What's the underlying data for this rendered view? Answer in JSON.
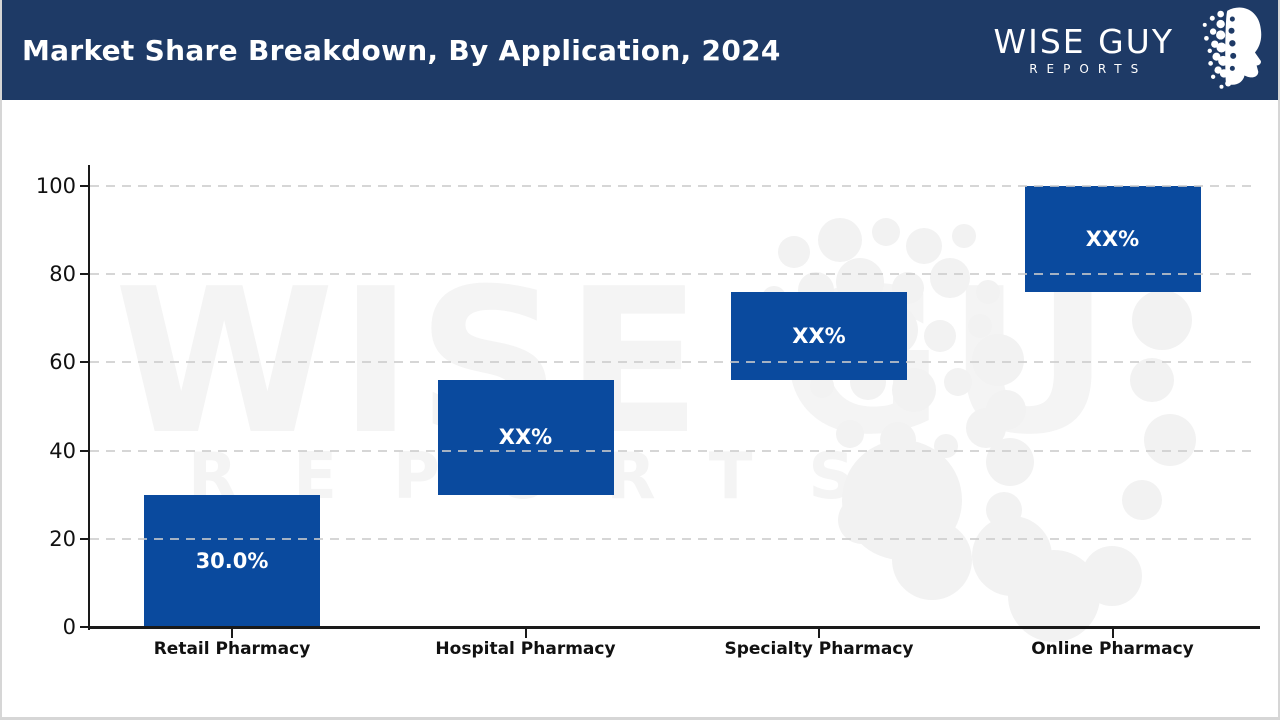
{
  "header": {
    "title": "Market Share Breakdown, By Application, 2024",
    "logo": {
      "line1": "WISE GUY",
      "line2": "REPORTS"
    }
  },
  "watermark": {
    "line1": "WISE GU",
    "line2": "REPORTS"
  },
  "colors": {
    "header_bg": "#1e3a66",
    "bar": "#0a4a9e",
    "axis": "#1a1a1a",
    "grid": "#cccccc",
    "bar_label": "#ffffff"
  },
  "chart_data": {
    "type": "bar",
    "subtype": "waterfall",
    "title": "Market Share Breakdown, By Application, 2024",
    "xlabel": "",
    "ylabel": "",
    "categories": [
      "Retail Pharmacy",
      "Hospital Pharmacy",
      "Specialty Pharmacy",
      "Online Pharmacy"
    ],
    "segments": [
      {
        "category": "Retail Pharmacy",
        "start": 0,
        "end": 30,
        "label": "30.0%"
      },
      {
        "category": "Hospital Pharmacy",
        "start": 30,
        "end": 56,
        "label": "XX%"
      },
      {
        "category": "Specialty Pharmacy",
        "start": 56,
        "end": 76,
        "label": "XX%"
      },
      {
        "category": "Online Pharmacy",
        "start": 76,
        "end": 100,
        "label": "XX%"
      }
    ],
    "yticks": [
      0,
      20,
      40,
      60,
      80,
      100
    ],
    "ylim": [
      0,
      105
    ],
    "grid": "horizontal-dashed",
    "legend": "none"
  }
}
